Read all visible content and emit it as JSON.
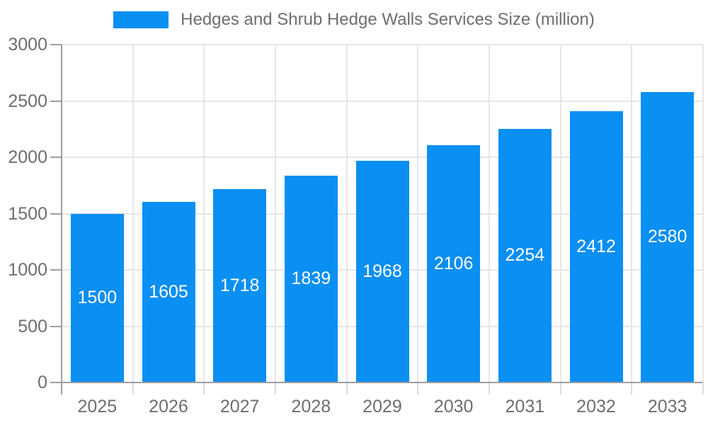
{
  "legend": {
    "swatch_color": "#0a8ff2"
  },
  "chart_data": {
    "type": "bar",
    "title": "Hedges and Shrub Hedge Walls Services Size (million)",
    "categories": [
      "2025",
      "2026",
      "2027",
      "2028",
      "2029",
      "2030",
      "2031",
      "2032",
      "2033"
    ],
    "values": [
      1500,
      1605,
      1718,
      1839,
      1968,
      2106,
      2254,
      2412,
      2580
    ],
    "series": [
      {
        "name": "Hedges and Shrub Hedge Walls Services Size (million)",
        "values": [
          1500,
          1605,
          1718,
          1839,
          1968,
          2106,
          2254,
          2412,
          2580
        ]
      }
    ],
    "xlabel": "",
    "ylabel": "",
    "ylim": [
      0,
      3000
    ],
    "yticks": [
      0,
      500,
      1000,
      1500,
      2000,
      2500,
      3000
    ],
    "grid": true,
    "legend_position": "top",
    "bar_color": "#0a8ff2",
    "value_label_color": "#ffffff",
    "grid_color": "#e6e6e6",
    "axis_color": "#9e9e9e",
    "text_color": "#6e6e6e"
  }
}
